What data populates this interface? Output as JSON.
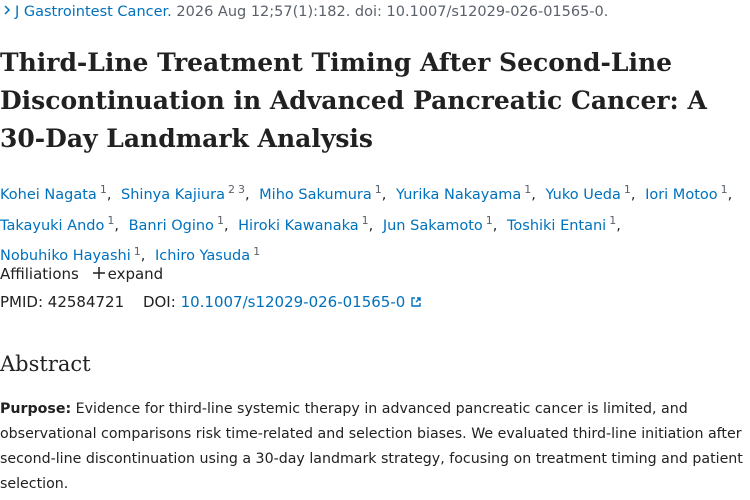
{
  "citation": {
    "journal": "J Gastrointest Cancer.",
    "details": "2026 Aug 12;57(1):182. doi: 10.1007/s12029-026-01565-0."
  },
  "title": "Third-Line Treatment Timing After Second-Line Discontinuation in Advanced Pancreatic Cancer: A 30-Day Landmark Analysis",
  "authors_separator": ",",
  "authors": [
    {
      "name": "Kohei Nagata",
      "affiliations": [
        "1"
      ]
    },
    {
      "name": "Shinya Kajiura",
      "affiliations": [
        "2",
        "3"
      ]
    },
    {
      "name": "Miho Sakumura",
      "affiliations": [
        "1"
      ]
    },
    {
      "name": "Yurika Nakayama",
      "affiliations": [
        "1"
      ]
    },
    {
      "name": "Yuko Ueda",
      "affiliations": [
        "1"
      ]
    },
    {
      "name": "Iori Motoo",
      "affiliations": [
        "1"
      ]
    },
    {
      "name": "Takayuki Ando",
      "affiliations": [
        "1"
      ]
    },
    {
      "name": "Banri Ogino",
      "affiliations": [
        "1"
      ]
    },
    {
      "name": "Hiroki Kawanaka",
      "affiliations": [
        "1"
      ]
    },
    {
      "name": "Jun Sakamoto",
      "affiliations": [
        "1"
      ]
    },
    {
      "name": "Toshiki Entani",
      "affiliations": [
        "1"
      ]
    },
    {
      "name": "Nobuhiko Hayashi",
      "affiliations": [
        "1"
      ]
    },
    {
      "name": "Ichiro Yasuda",
      "affiliations": [
        "1"
      ]
    }
  ],
  "affiliations": {
    "label": "Affiliations",
    "toggle": "expand"
  },
  "identifiers": {
    "pmid_label": "PMID:",
    "pmid": "42584721",
    "doi_label": "DOI:",
    "doi": "10.1007/s12029-026-01565-0"
  },
  "abstract": {
    "heading": "Abstract",
    "purpose_label": "Purpose:",
    "purpose": "Evidence for third-line systemic therapy in advanced pancreatic cancer is limited, and observational comparisons risk time-related and selection biases. We evaluated third-line initiation after second-line discontinuation using a 30-day landmark strategy, focusing on treatment timing and patient selection."
  }
}
